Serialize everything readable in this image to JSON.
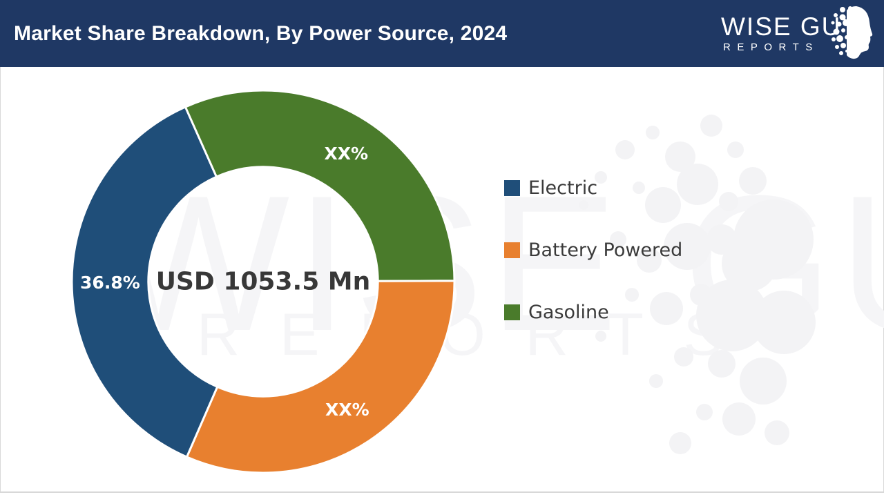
{
  "header": {
    "title": "Market Share Breakdown, By Power Source, 2024",
    "logo": {
      "line1": "WISE GUY",
      "line2": "REPORTS"
    }
  },
  "watermark": {
    "line1": "WISE GUY",
    "line2": "REPORTS"
  },
  "colors": {
    "header_bg": "#1F3864",
    "electric": "#1F4E79",
    "battery_powered": "#E8802F",
    "gasoline": "#4A7B2B",
    "slice_gap": "#FFFFFF",
    "center_text": "#383838",
    "watermark": "#F3F3F5"
  },
  "chart_data": {
    "type": "pie",
    "subtype": "donut",
    "title": "Market Share Breakdown, By Power Source, 2024",
    "center_label": "USD 1053.5 Mn",
    "slices": [
      {
        "label": "Electric",
        "value": 36.8,
        "display": "36.8%",
        "color": "#1F4E79"
      },
      {
        "label": "Battery Powered",
        "value": 31.6,
        "display": "XX%",
        "color": "#E8802F"
      },
      {
        "label": "Gasoline",
        "value": 31.6,
        "display": "XX%",
        "color": "#4A7B2B"
      }
    ],
    "layout": {
      "start_angle_deg": -114,
      "direction": "clockwise",
      "draw_order": [
        "Gasoline",
        "Battery Powered",
        "Electric"
      ],
      "inner_radius_ratio": 0.6,
      "label_radius_ratio": 0.8,
      "legend_position": "right"
    }
  }
}
